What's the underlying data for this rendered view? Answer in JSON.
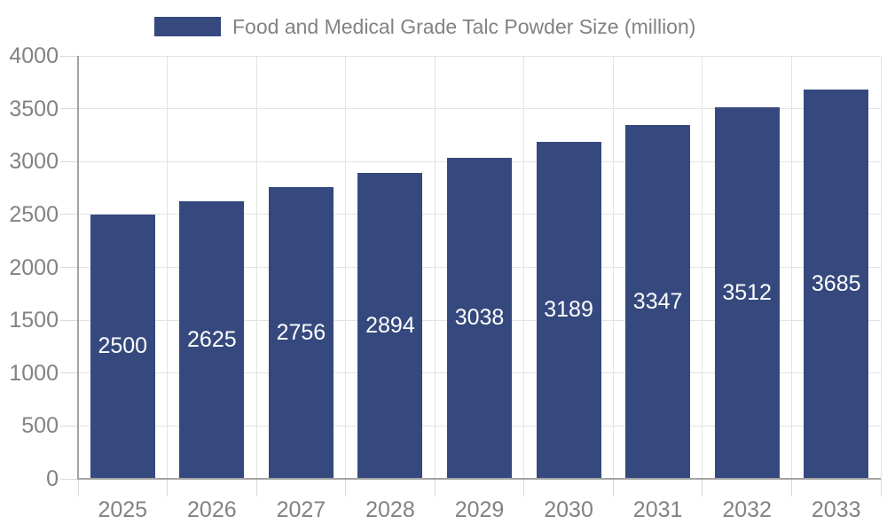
{
  "legend": {
    "label": "Food and Medical Grade Talc Powder Size (million)"
  },
  "chart_data": {
    "type": "bar",
    "title": "Food and Medical Grade Talc Powder Size (million)",
    "categories": [
      "2025",
      "2026",
      "2027",
      "2028",
      "2029",
      "2030",
      "2031",
      "2032",
      "2033"
    ],
    "values": [
      2500,
      2625,
      2756,
      2894,
      3038,
      3189,
      3347,
      3512,
      3685
    ],
    "xlabel": "",
    "ylabel": "",
    "ylim": [
      0,
      4000
    ],
    "yticks": [
      0,
      500,
      1000,
      1500,
      2000,
      2500,
      3000,
      3500,
      4000
    ],
    "grid": true,
    "legend_position": "top-center",
    "show_value_labels": true,
    "colors": {
      "bar": "#36497e",
      "bar_label": "#ffffff",
      "axis_line": "#a3a3a3",
      "grid_line": "#e3e3e3",
      "tick_mark": "#d9d9d9",
      "tick_label": "#828282",
      "legend_text": "#828282",
      "background": "#ffffff"
    }
  }
}
